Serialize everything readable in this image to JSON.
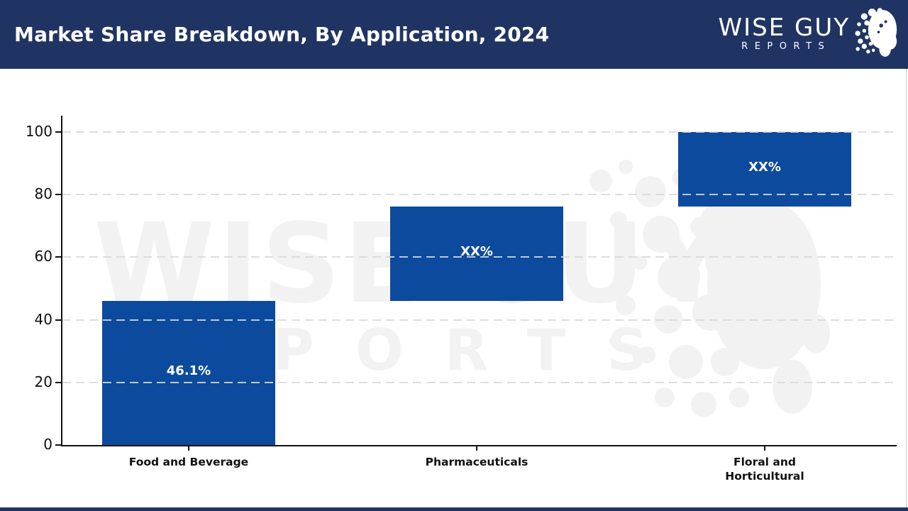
{
  "header": {
    "title": "Market Share Breakdown, By Application, 2024",
    "logo": {
      "line1": "WISE GUY",
      "line2": "REPORTS"
    }
  },
  "watermark": {
    "line1": "WISE GUY",
    "line2": "REPORTS"
  },
  "chart_data": {
    "type": "bar",
    "subtype": "floating-segment-waterfall",
    "title": "Market Share Breakdown, By Application, 2024",
    "categories": [
      "Food and Beverage",
      "Pharmaceuticals",
      "Floral and Horticultural"
    ],
    "categories_display": [
      [
        "Food and Beverage"
      ],
      [
        "Pharmaceuticals"
      ],
      [
        "Floral and",
        "Horticultural"
      ]
    ],
    "segments": [
      {
        "category": "Food and Beverage",
        "start": 0,
        "end": 46.1,
        "label": "46.1%"
      },
      {
        "category": "Pharmaceuticals",
        "start": 46.1,
        "end": 76.2,
        "label": "XX%"
      },
      {
        "category": "Floral and Horticultural",
        "start": 76.2,
        "end": 100,
        "label": "XX%"
      }
    ],
    "ylim": [
      0,
      100
    ],
    "yticks": [
      0,
      20,
      40,
      60,
      80,
      100
    ],
    "grid": "horizontal-dashed",
    "legend": "none",
    "bar_color": "#0c4a9e",
    "bar_label_color": "#ffffff",
    "axis_color": "#111111",
    "grid_color": "#d9d9d9"
  }
}
